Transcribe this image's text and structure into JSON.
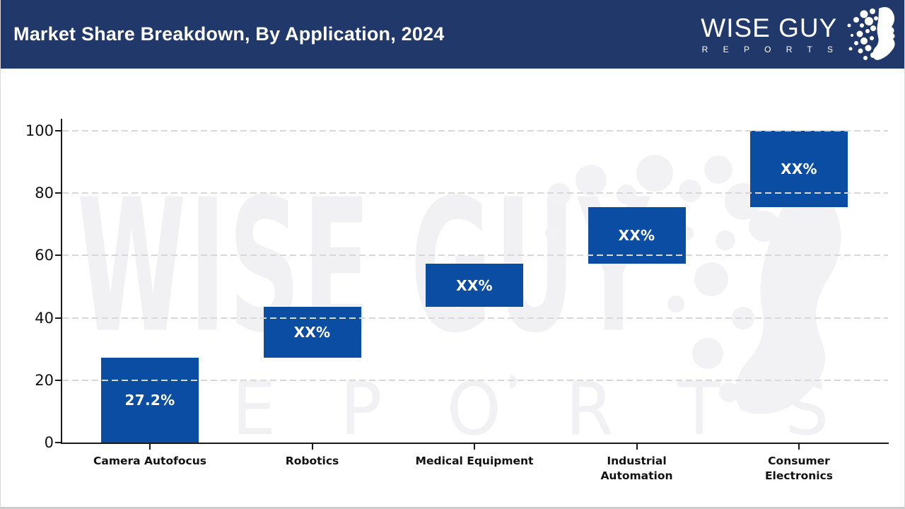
{
  "header": {
    "title": "Market Share Breakdown, By Application, 2024",
    "bg_color": "#21386b",
    "logo": {
      "line1": "WISE GUY",
      "line2": "R E P O R T S"
    }
  },
  "watermark": {
    "line1": "WISE GUY",
    "line2": "R E P O R T S"
  },
  "chart_data": {
    "type": "bar",
    "subtype": "waterfall",
    "title": "Market Share Breakdown, By Application, 2024",
    "xlabel": "",
    "ylabel": "",
    "categories": [
      "Camera Autofocus",
      "Robotics",
      "Medical Equipment",
      "Industrial\nAutomation",
      "Consumer\nElectronics"
    ],
    "segments": [
      {
        "start": 0,
        "end": 27.2,
        "label": "27.2%"
      },
      {
        "start": 27.2,
        "end": 43.5,
        "label": "XX%"
      },
      {
        "start": 43.5,
        "end": 57.3,
        "label": "XX%"
      },
      {
        "start": 57.3,
        "end": 75.5,
        "label": "XX%"
      },
      {
        "start": 75.5,
        "end": 100,
        "label": "XX%"
      }
    ],
    "increments": [
      27.2,
      16.3,
      13.8,
      18.2,
      24.5
    ],
    "ylim": [
      0,
      100
    ],
    "yticks": [
      0,
      20,
      40,
      60,
      80,
      100
    ],
    "grid": true,
    "grid_style": "dashed",
    "legend": "none",
    "bar_color": "#0b4da2",
    "bar_label_color": "#ffffff",
    "grid_color": "#d8d8d8",
    "axis_color": "#1a1a1a",
    "watermark_color": "#f1f1f4"
  }
}
